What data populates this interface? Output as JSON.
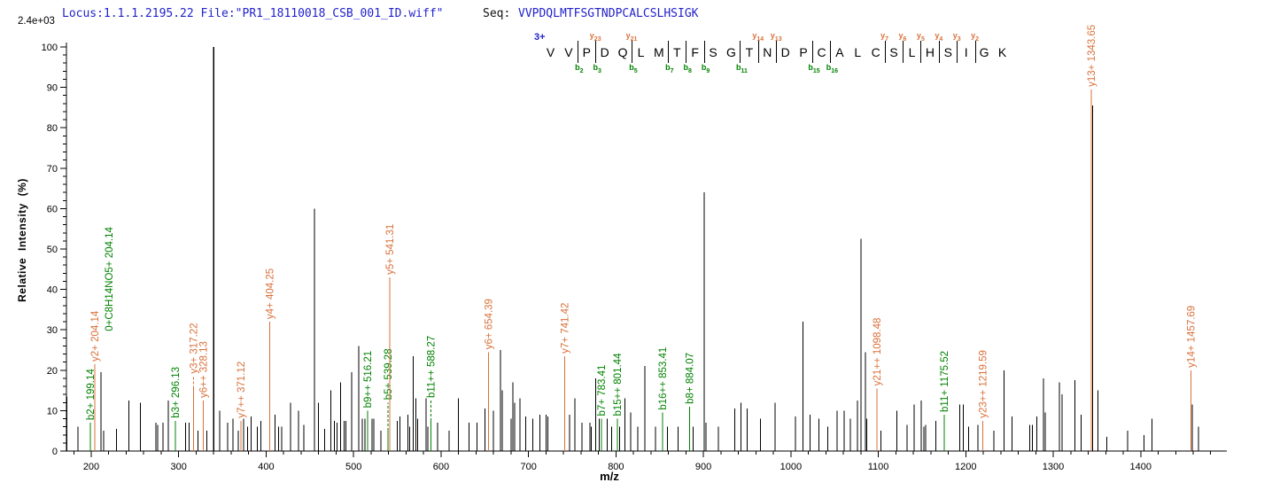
{
  "header": {
    "locus_file": "Locus:1.1.1.2195.22 File:\"PR1_18110018_CSB_001_ID.wiff\"",
    "seq_label": "Seq:",
    "seq_value": "VVPDQLMTFSGTNDPCALCSLHSIGK",
    "base_peak_intensity": "2.4e+03"
  },
  "axes": {
    "x_title": "m/z",
    "y_title": "Relative Intensity (%)"
  },
  "peptide": {
    "charge_label": "3+",
    "sequence": "VVPDQLMTFSGTNDPCALCSLHSIGK",
    "markers": [
      {
        "gap": 2,
        "b": "b2"
      },
      {
        "gap": 3,
        "b": "b3",
        "y": "y23"
      },
      {
        "gap": 5,
        "b": "b5",
        "y": "y21"
      },
      {
        "gap": 7,
        "b": "b7"
      },
      {
        "gap": 8,
        "b": "b8"
      },
      {
        "gap": 9,
        "b": "b9"
      },
      {
        "gap": 11,
        "b": "b11"
      },
      {
        "gap": 12,
        "y": "y14"
      },
      {
        "gap": 13,
        "y": "y13"
      },
      {
        "gap": 15,
        "b": "b15"
      },
      {
        "gap": 16,
        "b": "b16"
      },
      {
        "gap": 19,
        "y": "y7"
      },
      {
        "gap": 20,
        "y": "y6"
      },
      {
        "gap": 21,
        "y": "y5"
      },
      {
        "gap": 22,
        "y": "y4"
      },
      {
        "gap": 23,
        "y": "y3"
      },
      {
        "gap": 24,
        "y": "y2"
      }
    ]
  },
  "chart_data": {
    "type": "mass_spectrum_stick",
    "title": "MS/MS spectrum Locus 1.1.1.2195.22",
    "xlabel": "m/z",
    "ylabel": "Relative Intensity (%)",
    "xlim": [
      170,
      1500
    ],
    "ylim": [
      0,
      100
    ],
    "x_ticks": [
      200,
      300,
      400,
      500,
      600,
      700,
      800,
      900,
      1000,
      1100,
      1200,
      1300,
      1400
    ],
    "x_minor_step": 20,
    "y_ticks": [
      0,
      10,
      20,
      30,
      40,
      50,
      60,
      70,
      80,
      90,
      100
    ],
    "y_minor_step": 2,
    "grid": false,
    "base_peak_absolute_intensity": "2.4e+03",
    "colors": {
      "y_ion": "#d9703a",
      "b_ion": "#008200",
      "peak": "#000000",
      "header_blue": "#2222cc"
    },
    "labeled_peaks": [
      {
        "mz": 199.14,
        "text": "b2+ 199.14",
        "ion": "b",
        "pct": 6.5,
        "label_from": 7
      },
      {
        "mz": 204.14,
        "text": "y2+ 204.14",
        "ion": "y",
        "pct": 21,
        "label_from": 21.5
      },
      {
        "mz": 204.14,
        "text": "0+C8H14NO5+ 204.14",
        "ion": "b",
        "pct": 0,
        "label_from": 29,
        "line": false,
        "dx": 16
      },
      {
        "mz": 296.13,
        "text": "b3+ 296.13",
        "ion": "b",
        "pct": 7,
        "label_from": 7.5
      },
      {
        "mz": 317.22,
        "text": "y3+ 317.22",
        "ion": "y",
        "pct": 15.5,
        "label_from": 18.5,
        "dashed": true
      },
      {
        "mz": 328.13,
        "text": "y6++ 328.13",
        "ion": "y",
        "pct": 12,
        "label_from": 12.5
      },
      {
        "mz": 371.12,
        "text": "y7++ 371.12",
        "ion": "y",
        "pct": 7,
        "label_from": 7.5
      },
      {
        "mz": 404.25,
        "text": "y4+ 404.25",
        "ion": "y",
        "pct": 31.5,
        "label_from": 32
      },
      {
        "mz": 516.21,
        "text": "b9++ 516.21",
        "ion": "b",
        "pct": 8.5,
        "label_from": 10
      },
      {
        "mz": 539.28,
        "text": "b5+ 539.28",
        "ion": "b",
        "pct": 5,
        "label_from": 12,
        "dashed": true
      },
      {
        "mz": 541.31,
        "text": "y5+ 541.31",
        "ion": "y",
        "pct": 42.5,
        "label_from": 43
      },
      {
        "mz": 588.27,
        "text": "b11++ 588.27",
        "ion": "b",
        "pct": 7.5,
        "label_from": 12.5,
        "dashed": true
      },
      {
        "mz": 654.39,
        "text": "y6+ 654.39",
        "ion": "y",
        "pct": 24,
        "label_from": 24.5
      },
      {
        "mz": 741.42,
        "text": "y7+ 741.42",
        "ion": "y",
        "pct": 23,
        "label_from": 23.5
      },
      {
        "mz": 783.41,
        "text": "b7+ 783.41",
        "ion": "b",
        "pct": 7.5,
        "label_from": 8
      },
      {
        "mz": 801.44,
        "text": "b15++ 801.44",
        "ion": "b",
        "pct": 7.5,
        "label_from": 8
      },
      {
        "mz": 853.41,
        "text": "b16++ 853.41",
        "ion": "b",
        "pct": 9,
        "label_from": 9.5
      },
      {
        "mz": 884.07,
        "text": "b8+ 884.07",
        "ion": "b",
        "pct": 10.5,
        "label_from": 11
      },
      {
        "mz": 1098.48,
        "text": "y21++ 1098.48",
        "ion": "y",
        "pct": 15,
        "label_from": 15.5
      },
      {
        "mz": 1175.52,
        "text": "b11+ 1175.52",
        "ion": "b",
        "pct": 8.5,
        "label_from": 9
      },
      {
        "mz": 1219.59,
        "text": "y23++ 1219.59",
        "ion": "y",
        "pct": 7,
        "label_from": 7.5
      },
      {
        "mz": 1343.65,
        "text": "y13+ 1343.65",
        "ion": "y",
        "pct": 85.5,
        "label_from": 89.5
      },
      {
        "mz": 1457.69,
        "text": "y14+ 1457.69",
        "ion": "y",
        "pct": 11.5,
        "label_from": 20
      }
    ],
    "peaks": [
      [
        172,
        13.5
      ],
      [
        185,
        6
      ],
      [
        211,
        19.5
      ],
      [
        214,
        5
      ],
      [
        229,
        5.5
      ],
      [
        243,
        12.5
      ],
      [
        256,
        12
      ],
      [
        274,
        7
      ],
      [
        276,
        6.5
      ],
      [
        282,
        7
      ],
      [
        288,
        12.5
      ],
      [
        308,
        7
      ],
      [
        312,
        7
      ],
      [
        322,
        5
      ],
      [
        332,
        5
      ],
      [
        340,
        100
      ],
      [
        347,
        10
      ],
      [
        356,
        7
      ],
      [
        362,
        8
      ],
      [
        368,
        5
      ],
      [
        374,
        8
      ],
      [
        379,
        6
      ],
      [
        383,
        8.5
      ],
      [
        390,
        6
      ],
      [
        394,
        7.5
      ],
      [
        410,
        9
      ],
      [
        414,
        6
      ],
      [
        418,
        6
      ],
      [
        428,
        12
      ],
      [
        437,
        10
      ],
      [
        443,
        6.5
      ],
      [
        455,
        60
      ],
      [
        460,
        12
      ],
      [
        467,
        5.5
      ],
      [
        474,
        15
      ],
      [
        478,
        7.5
      ],
      [
        481,
        7
      ],
      [
        485,
        17
      ],
      [
        489,
        7.5
      ],
      [
        491,
        7.5
      ],
      [
        498,
        19.5
      ],
      [
        506,
        26
      ],
      [
        510,
        8
      ],
      [
        513,
        8
      ],
      [
        521,
        8
      ],
      [
        523,
        8
      ],
      [
        531,
        5
      ],
      [
        550,
        7.5
      ],
      [
        553,
        8.5
      ],
      [
        562,
        9
      ],
      [
        564,
        6
      ],
      [
        568,
        23.5
      ],
      [
        571,
        13
      ],
      [
        573,
        8
      ],
      [
        583,
        13
      ],
      [
        585,
        6
      ],
      [
        596,
        7
      ],
      [
        609,
        5
      ],
      [
        620,
        13
      ],
      [
        632,
        7
      ],
      [
        641,
        7
      ],
      [
        650,
        10.5
      ],
      [
        660,
        10
      ],
      [
        668,
        25
      ],
      [
        670,
        15
      ],
      [
        680,
        8
      ],
      [
        682,
        17
      ],
      [
        684,
        12
      ],
      [
        690,
        13
      ],
      [
        697,
        8.5
      ],
      [
        705,
        8
      ],
      [
        713,
        9
      ],
      [
        720,
        9
      ],
      [
        722,
        8.5
      ],
      [
        747,
        9
      ],
      [
        753,
        13
      ],
      [
        761,
        7
      ],
      [
        770,
        7
      ],
      [
        772,
        6
      ],
      [
        777,
        18
      ],
      [
        781,
        8
      ],
      [
        790,
        8
      ],
      [
        795,
        6
      ],
      [
        804,
        6
      ],
      [
        810,
        13
      ],
      [
        817,
        9.5
      ],
      [
        825,
        6
      ],
      [
        833,
        21
      ],
      [
        845,
        6
      ],
      [
        859,
        6
      ],
      [
        871,
        6
      ],
      [
        888,
        6
      ],
      [
        901,
        64
      ],
      [
        903,
        7
      ],
      [
        917,
        6
      ],
      [
        936,
        10.5
      ],
      [
        943,
        12
      ],
      [
        950,
        10.5
      ],
      [
        965,
        8
      ],
      [
        982,
        12
      ],
      [
        1005,
        8.5
      ],
      [
        1014,
        32
      ],
      [
        1022,
        9
      ],
      [
        1032,
        8
      ],
      [
        1042,
        6
      ],
      [
        1053,
        10
      ],
      [
        1061,
        10
      ],
      [
        1068,
        8
      ],
      [
        1076,
        12.5
      ],
      [
        1080,
        52.5
      ],
      [
        1085,
        24.5
      ],
      [
        1087,
        8
      ],
      [
        1103,
        5
      ],
      [
        1121,
        10
      ],
      [
        1133,
        6.5
      ],
      [
        1141,
        11.5
      ],
      [
        1149,
        12.5
      ],
      [
        1152,
        6
      ],
      [
        1154,
        6.5
      ],
      [
        1166,
        7.5
      ],
      [
        1193,
        11.5
      ],
      [
        1197,
        11.5
      ],
      [
        1203,
        6
      ],
      [
        1214,
        6.5
      ],
      [
        1232,
        5
      ],
      [
        1244,
        20
      ],
      [
        1253,
        8.5
      ],
      [
        1273,
        6.5
      ],
      [
        1276,
        6.5
      ],
      [
        1281,
        8.5
      ],
      [
        1289,
        18
      ],
      [
        1291,
        9.5
      ],
      [
        1307,
        17
      ],
      [
        1310,
        14
      ],
      [
        1325,
        17.5
      ],
      [
        1332,
        9
      ],
      [
        1345,
        85.5
      ],
      [
        1351,
        15
      ],
      [
        1361,
        3.5
      ],
      [
        1385,
        5
      ],
      [
        1404,
        4
      ],
      [
        1413,
        8
      ],
      [
        1459,
        11.5
      ],
      [
        1466,
        6
      ]
    ]
  }
}
